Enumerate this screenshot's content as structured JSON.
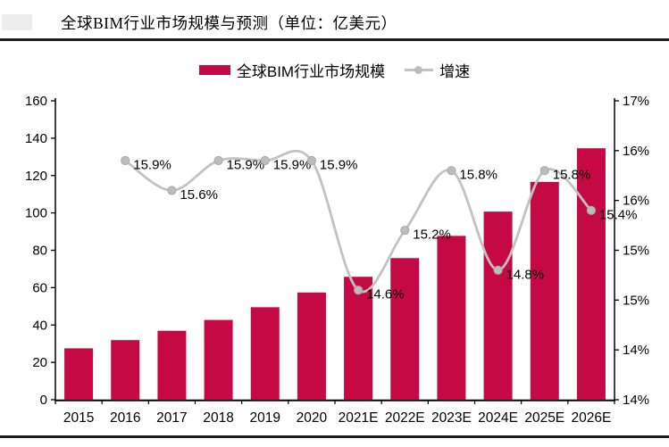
{
  "page": {
    "background": "#ffffff",
    "rule_color": "#1c1c1c"
  },
  "header": {
    "title": "全球BIM行业市场规模与预测（单位：亿美元）"
  },
  "legend": {
    "items": [
      {
        "label": "全球BIM行业市场规模",
        "swatch": "bar",
        "color": "#C40944"
      },
      {
        "label": "增速",
        "swatch": "line",
        "line_color": "#C2C2C2",
        "dot_color": "#BCBCBC"
      }
    ]
  },
  "chart_data": {
    "type": "combo",
    "title": "全球BIM行业市场规模与预测（单位：亿美元）",
    "unit": "亿美元",
    "categories": [
      "2015",
      "2016",
      "2017",
      "2018",
      "2019",
      "2020",
      "2021E",
      "2022E",
      "2023E",
      "2024E",
      "2025E",
      "2026E"
    ],
    "series": [
      {
        "name": "全球BIM行业市场规模",
        "type": "bar",
        "axis": "left",
        "color": "#C40944",
        "values": [
          27.5,
          31.9,
          36.9,
          42.7,
          49.5,
          57.4,
          65.8,
          75.8,
          87.7,
          100.7,
          116.6,
          134.6
        ]
      },
      {
        "name": "增速",
        "type": "line",
        "axis": "right",
        "line_color": "#C2C2C2",
        "marker_color": "#BCBCBC",
        "values": [
          null,
          15.9,
          15.6,
          15.9,
          15.9,
          15.9,
          14.6,
          15.2,
          15.8,
          14.8,
          15.8,
          15.4
        ],
        "point_labels": [
          null,
          "15.9%",
          "15.6%",
          "15.9%",
          "15.9%",
          "15.9%",
          "14.6%",
          "15.2%",
          "15.8%",
          "14.8%",
          "15.8%",
          "15.4%"
        ]
      }
    ],
    "left_axis": {
      "min": 0,
      "max": 160,
      "step": 20,
      "tick_labels": [
        "0",
        "20",
        "40",
        "60",
        "80",
        "100",
        "120",
        "140",
        "160"
      ]
    },
    "right_axis": {
      "min": 13.5,
      "max": 16.5,
      "step": 0.5,
      "tick_labels": [
        "14%",
        "14%",
        "15%",
        "15%",
        "16%",
        "16%",
        "17%"
      ],
      "note": "labels rounded to whole percent"
    },
    "grid": false,
    "legend_position": "top",
    "axis_color": "#000000",
    "label_color": "#000000"
  }
}
